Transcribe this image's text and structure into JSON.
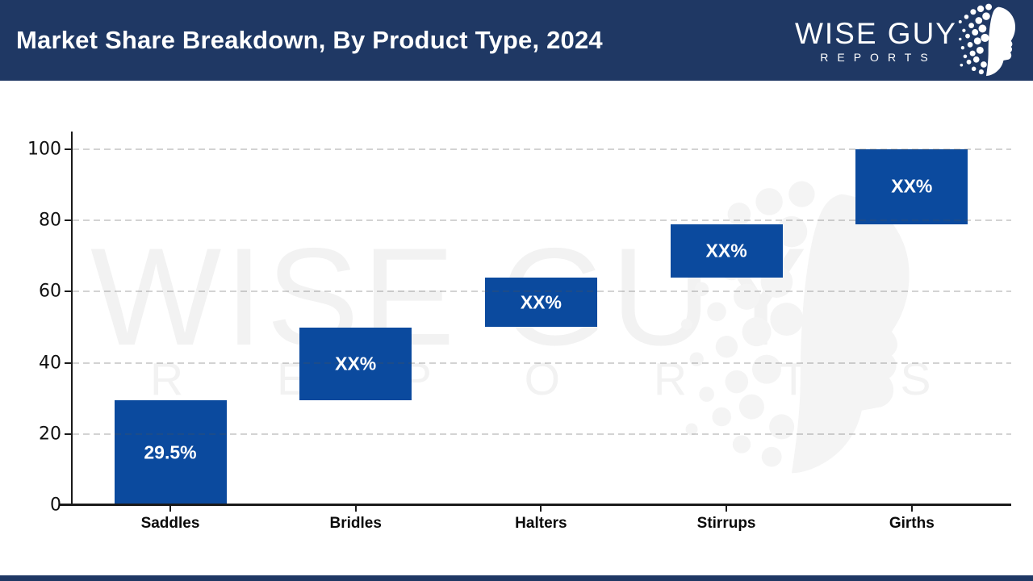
{
  "header": {
    "title": "Market Share Breakdown, By Product Type, 2024",
    "bg_color": "#1f3864",
    "logo": {
      "line1": "WISE GUY",
      "line2": "REPORTS"
    }
  },
  "watermark": {
    "line1": "WISE GUY",
    "line2": "R E P O R T S"
  },
  "chart_data": {
    "type": "bar",
    "subtype": "waterfall",
    "title": "Market Share Breakdown, By Product Type, 2024",
    "categories": [
      "Saddles",
      "Bridles",
      "Halters",
      "Stirrups",
      "Girths"
    ],
    "segments": [
      {
        "category": "Saddles",
        "start": 0,
        "end": 29.5,
        "label": "29.5%"
      },
      {
        "category": "Bridles",
        "start": 29.5,
        "end": 50,
        "label": "XX%"
      },
      {
        "category": "Halters",
        "start": 50,
        "end": 64,
        "label": "XX%"
      },
      {
        "category": "Stirrups",
        "start": 64,
        "end": 79,
        "label": "XX%"
      },
      {
        "category": "Girths",
        "start": 79,
        "end": 100,
        "label": "XX%"
      }
    ],
    "xlabel": "",
    "ylabel": "",
    "ylim": [
      0,
      100
    ],
    "yticks": [
      0,
      20,
      40,
      60,
      80,
      100
    ],
    "grid": "horizontal-dashed",
    "bar_color": "#0b4a9e",
    "bar_label_color": "#ffffff",
    "legend": "none"
  },
  "footer": {
    "bg_color": "#1f3864"
  }
}
